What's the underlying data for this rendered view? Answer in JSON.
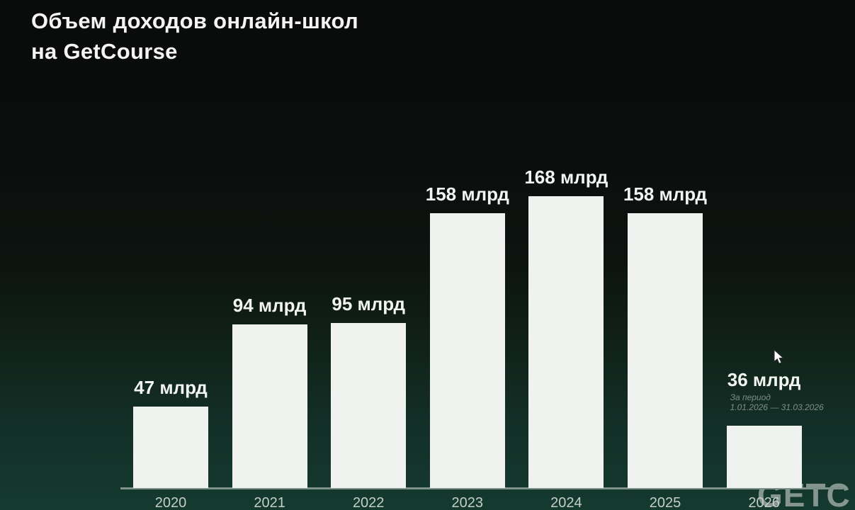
{
  "title": {
    "line1": "Объем доходов онлайн-школ",
    "line2": "на GetCourse"
  },
  "chart_data": {
    "type": "bar",
    "title": "Объем доходов онлайн-школ на GetCourse",
    "categories": [
      "2020",
      "2021",
      "2022",
      "2023",
      "2024",
      "2025",
      "2026"
    ],
    "values": [
      47,
      94,
      95,
      158,
      168,
      158,
      36
    ],
    "value_labels": [
      "47 млрд",
      "94 млрд",
      "95 млрд",
      "158 млрд",
      "168 млрд",
      "158 млрд",
      "36 млрд"
    ],
    "unit": "млрд",
    "ylim": [
      0,
      200
    ],
    "grid": false,
    "legend": false,
    "annotation": {
      "category": "2026",
      "line1": "За период",
      "line2": "1.01.2026 — 31.03.2026"
    },
    "bar_color": "#f0f2ef",
    "axis_line_color": "#7e948b",
    "label_color": "#f2f4f1",
    "background_top": "#0a0b0b",
    "background_bottom": "#143a2f"
  },
  "watermark": "GETC"
}
